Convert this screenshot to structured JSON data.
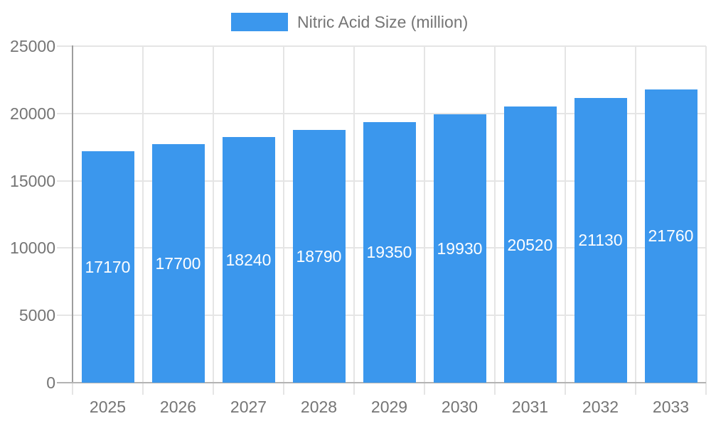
{
  "legend": {
    "label": "Nitric Acid Size (million)"
  },
  "colors": {
    "bar": "#3B97ED",
    "bar_label": "#ffffff",
    "axis_text": "#757575",
    "grid": "#e5e5e5",
    "axis_line": "#9e9e9e",
    "baseline": "#b3b3b3",
    "background": "#ffffff"
  },
  "chart_data": {
    "type": "bar",
    "title": "",
    "xlabel": "",
    "ylabel": "",
    "categories": [
      "2025",
      "2026",
      "2027",
      "2028",
      "2029",
      "2030",
      "2031",
      "2032",
      "2033"
    ],
    "values": [
      17170,
      17700,
      18240,
      18790,
      19350,
      19930,
      20520,
      21130,
      21760
    ],
    "series_name": "Nitric Acid Size (million)",
    "yticks": [
      0,
      5000,
      10000,
      15000,
      20000,
      25000
    ],
    "ylim": [
      0,
      25000
    ],
    "grid": "horizontal gridlines at yticks plus vertical gridlines at category boundaries",
    "legend_position": "top-center",
    "value_labels_position": "inside-bar-center"
  }
}
